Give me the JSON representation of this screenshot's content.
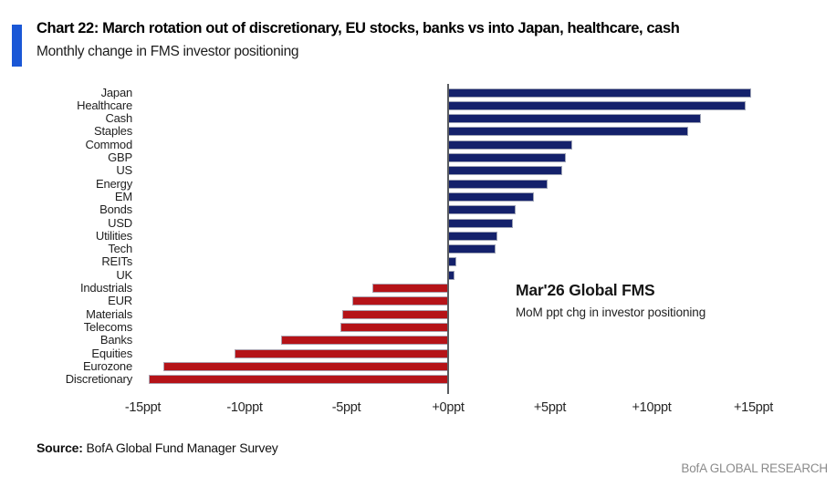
{
  "header": {
    "title": "Chart 22: March rotation out of discretionary, EU stocks, banks vs into Japan, healthcare, cash",
    "subtitle": "Monthly change in FMS investor positioning",
    "accent_color": "#1a57d6"
  },
  "chart_data": {
    "type": "bar",
    "orientation": "horizontal",
    "title": "Chart 22: March rotation out of discretionary, EU stocks, banks vs into Japan, healthcare, cash",
    "subtitle": "Monthly change in FMS investor positioning",
    "unit": "ppt",
    "categories": [
      "Japan",
      "Healthcare",
      "Cash",
      "Staples",
      "Commod",
      "GBP",
      "US",
      "Energy",
      "EM",
      "Bonds",
      "USD",
      "Utilities",
      "Tech",
      "REITs",
      "UK",
      "Industrials",
      "EUR",
      "Materials",
      "Telecoms",
      "Banks",
      "Equities",
      "Eurozone",
      "Discretionary"
    ],
    "values": [
      14.9,
      14.6,
      12.4,
      11.8,
      6.1,
      5.8,
      5.6,
      4.9,
      4.2,
      3.3,
      3.2,
      2.4,
      2.35,
      0.4,
      0.3,
      -3.7,
      -4.7,
      -5.2,
      -5.3,
      -8.2,
      -10.5,
      -14.0,
      -14.7
    ],
    "x_ticks": [
      {
        "label": "-15ppt",
        "value": -15
      },
      {
        "label": "-10ppt",
        "value": -10
      },
      {
        "label": "-5ppt",
        "value": -5
      },
      {
        "label": "+0ppt",
        "value": 0
      },
      {
        "label": "+5ppt",
        "value": 5
      },
      {
        "label": "+10ppt",
        "value": 10
      },
      {
        "label": "+15ppt",
        "value": 15
      }
    ],
    "xlim": [
      -15.5,
      17
    ],
    "grid": false,
    "legend": false,
    "positive_color": "#14216b",
    "negative_color": "#b51318",
    "annotation": {
      "title": "Mar'26 Global FMS",
      "subtitle": "MoM ppt chg in investor positioning"
    }
  },
  "footer": {
    "source_label": "Source:",
    "source_text": "BofA Global Fund Manager Survey",
    "branding": "BofA GLOBAL RESEARCH"
  }
}
